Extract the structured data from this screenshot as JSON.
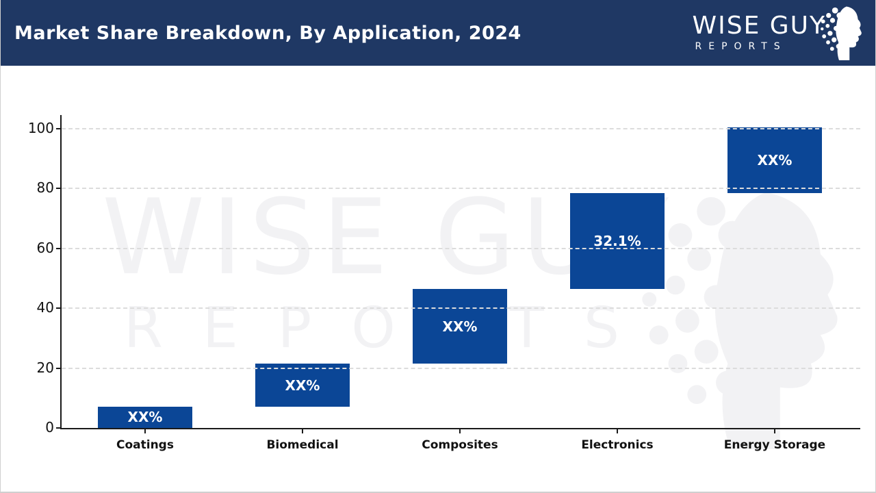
{
  "page": {
    "background": "#ffffff",
    "border_color": "#cfcfcf"
  },
  "header": {
    "title": "Market Share Breakdown, By Application, 2024",
    "background": "#1f3864",
    "logo": {
      "line1": "WISE GUY",
      "line2": "REPORTS",
      "icon": "dotted-face-profile-icon"
    }
  },
  "watermark": {
    "line1": "WISE GUY",
    "line2": "REPORTS",
    "color": "#f2f2f4",
    "icon": "dotted-face-profile-icon"
  },
  "chart_data": {
    "type": "bar",
    "subtype": "waterfall",
    "title": "Market Share Breakdown, By Application, 2024",
    "categories": [
      "Coatings",
      "Biomedical",
      "Composites",
      "Electronics",
      "Energy Storage"
    ],
    "segments": [
      {
        "category": "Coatings",
        "start": 0,
        "end": 7.1,
        "value_label": "XX%"
      },
      {
        "category": "Biomedical",
        "start": 7.1,
        "end": 21.4,
        "value_label": "XX%"
      },
      {
        "category": "Composites",
        "start": 21.4,
        "end": 46.4,
        "value_label": "XX%"
      },
      {
        "category": "Electronics",
        "start": 46.4,
        "end": 78.5,
        "value_label": "32.1%"
      },
      {
        "category": "Energy Storage",
        "start": 78.5,
        "end": 100.4,
        "value_label": "XX%"
      }
    ],
    "xlabel": "",
    "ylabel": "",
    "ylim": [
      0,
      104
    ],
    "yticks": [
      0,
      20,
      40,
      60,
      80,
      100
    ],
    "grid": "horizontal-dashed",
    "grid_color": "#dcdcdc",
    "bar_color": "#0b4696",
    "bar_label_color": "#ffffff",
    "axis_color": "#1a1a1a",
    "legend": "none"
  }
}
